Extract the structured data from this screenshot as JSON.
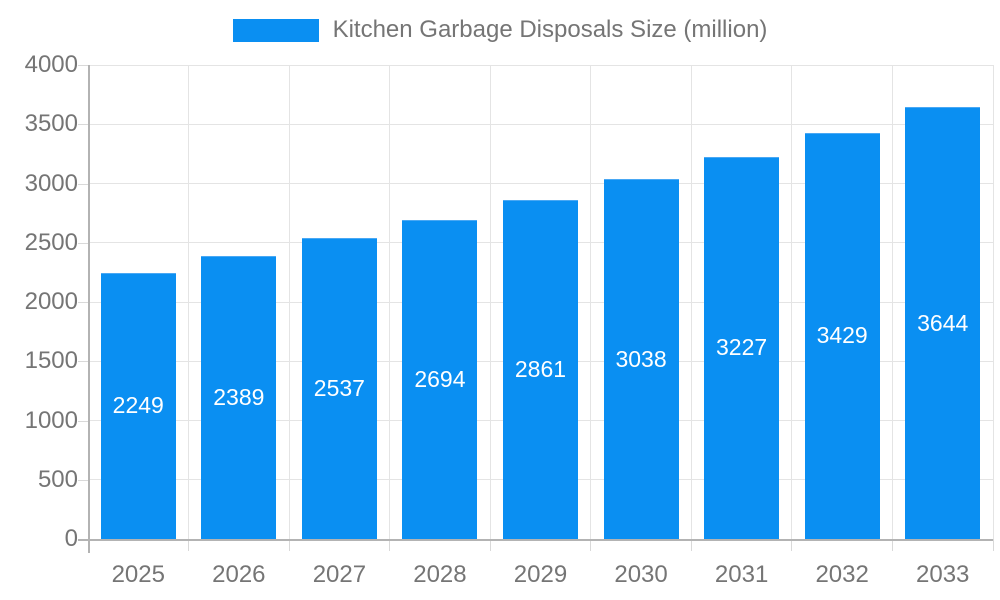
{
  "legend": {
    "label": "Kitchen Garbage Disposals Size (million)",
    "swatch_color": "#0a8ff2"
  },
  "chart_data": {
    "type": "bar",
    "title": "",
    "xlabel": "",
    "ylabel": "",
    "categories": [
      "2025",
      "2026",
      "2027",
      "2028",
      "2029",
      "2030",
      "2031",
      "2032",
      "2033"
    ],
    "series": [
      {
        "name": "Kitchen Garbage Disposals Size (million)",
        "values": [
          2249,
          2389,
          2537,
          2694,
          2861,
          3038,
          3227,
          3429,
          3644
        ]
      }
    ],
    "ylim": [
      0,
      4000
    ],
    "yticks": [
      0,
      500,
      1000,
      1500,
      2000,
      2500,
      3000,
      3500,
      4000
    ],
    "grid": true,
    "legend_position": "top",
    "value_labels": "inside-center"
  },
  "colors": {
    "bar": "#0a8ff2",
    "bar_edge": "#49a8f4",
    "grid": "#e4e4e4",
    "axis": "#b3b3b3",
    "text": "#757575",
    "value_label": "#ffffff",
    "background": "#ffffff"
  }
}
